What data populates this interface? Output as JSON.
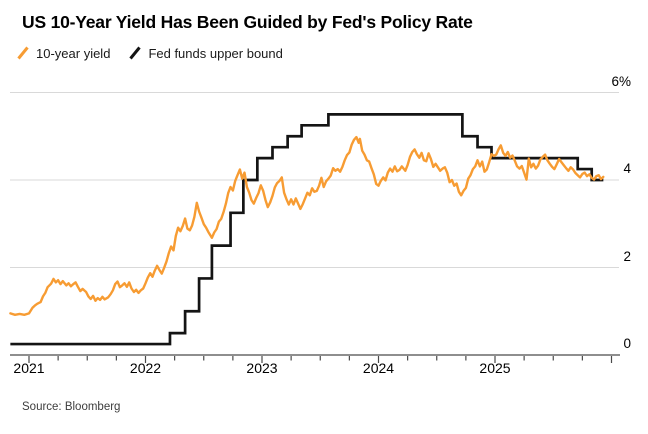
{
  "title": "US 10-Year Yield Has Been Guided by Fed's Policy Rate",
  "source": "Source: Bloomberg",
  "colors": {
    "yield_orange": "#F79C33",
    "fed_black": "#141414",
    "gridline": "#D9D9D9",
    "axis": "#4A4A4A"
  },
  "chart_data": {
    "type": "line",
    "title": "US 10-Year Yield Has Been Guided by Fed's Policy Rate",
    "xlabel": "",
    "ylabel": "",
    "x_unit": "decimal_year",
    "x_range": [
      2020.84,
      2026.0
    ],
    "ylim": [
      0,
      6
    ],
    "grid": "horizontal",
    "legend_position": "top-left",
    "y_ticks": [
      {
        "label": "6%",
        "v": 6
      },
      {
        "label": "4",
        "v": 4
      },
      {
        "label": "2",
        "v": 2
      },
      {
        "label": "0",
        "v": 0
      }
    ],
    "x_ticks": [
      {
        "label": "2021",
        "t": 2021
      },
      {
        "label": "2022",
        "t": 2022
      },
      {
        "label": "2023",
        "t": 2023
      },
      {
        "label": "2024",
        "t": 2024
      },
      {
        "label": "2025",
        "t": 2025
      }
    ],
    "x_minor_tick_step": 0.25,
    "series": [
      {
        "name": "10-year yield",
        "style": "line",
        "color": "#F79C33",
        "points": [
          [
            2020.84,
            0.95
          ],
          [
            2020.88,
            0.92
          ],
          [
            2020.92,
            0.94
          ],
          [
            2020.96,
            0.92
          ],
          [
            2021.0,
            0.95
          ],
          [
            2021.03,
            1.08
          ],
          [
            2021.05,
            1.13
          ],
          [
            2021.07,
            1.17
          ],
          [
            2021.1,
            1.21
          ],
          [
            2021.12,
            1.34
          ],
          [
            2021.14,
            1.42
          ],
          [
            2021.16,
            1.55
          ],
          [
            2021.19,
            1.63
          ],
          [
            2021.21,
            1.74
          ],
          [
            2021.23,
            1.66
          ],
          [
            2021.25,
            1.71
          ],
          [
            2021.27,
            1.62
          ],
          [
            2021.29,
            1.69
          ],
          [
            2021.32,
            1.59
          ],
          [
            2021.34,
            1.64
          ],
          [
            2021.36,
            1.57
          ],
          [
            2021.38,
            1.62
          ],
          [
            2021.4,
            1.66
          ],
          [
            2021.42,
            1.56
          ],
          [
            2021.44,
            1.46
          ],
          [
            2021.46,
            1.51
          ],
          [
            2021.49,
            1.44
          ],
          [
            2021.51,
            1.34
          ],
          [
            2021.53,
            1.28
          ],
          [
            2021.55,
            1.35
          ],
          [
            2021.57,
            1.24
          ],
          [
            2021.59,
            1.3
          ],
          [
            2021.61,
            1.26
          ],
          [
            2021.63,
            1.33
          ],
          [
            2021.65,
            1.27
          ],
          [
            2021.68,
            1.32
          ],
          [
            2021.7,
            1.39
          ],
          [
            2021.72,
            1.48
          ],
          [
            2021.74,
            1.62
          ],
          [
            2021.76,
            1.68
          ],
          [
            2021.78,
            1.55
          ],
          [
            2021.8,
            1.59
          ],
          [
            2021.82,
            1.64
          ],
          [
            2021.84,
            1.56
          ],
          [
            2021.86,
            1.66
          ],
          [
            2021.88,
            1.52
          ],
          [
            2021.9,
            1.44
          ],
          [
            2021.92,
            1.49
          ],
          [
            2021.94,
            1.42
          ],
          [
            2021.96,
            1.48
          ],
          [
            2021.98,
            1.52
          ],
          [
            2022.0,
            1.64
          ],
          [
            2022.02,
            1.77
          ],
          [
            2022.04,
            1.87
          ],
          [
            2022.06,
            1.79
          ],
          [
            2022.08,
            1.93
          ],
          [
            2022.1,
            2.04
          ],
          [
            2022.12,
            1.94
          ],
          [
            2022.14,
            1.86
          ],
          [
            2022.16,
            1.99
          ],
          [
            2022.18,
            2.14
          ],
          [
            2022.2,
            2.33
          ],
          [
            2022.22,
            2.48
          ],
          [
            2022.24,
            2.39
          ],
          [
            2022.26,
            2.72
          ],
          [
            2022.28,
            2.91
          ],
          [
            2022.3,
            2.83
          ],
          [
            2022.32,
            2.95
          ],
          [
            2022.34,
            3.12
          ],
          [
            2022.36,
            2.89
          ],
          [
            2022.38,
            2.85
          ],
          [
            2022.4,
            2.96
          ],
          [
            2022.42,
            3.16
          ],
          [
            2022.44,
            3.48
          ],
          [
            2022.46,
            3.28
          ],
          [
            2022.48,
            3.14
          ],
          [
            2022.5,
            2.99
          ],
          [
            2022.52,
            2.91
          ],
          [
            2022.54,
            2.81
          ],
          [
            2022.57,
            2.68
          ],
          [
            2022.59,
            2.8
          ],
          [
            2022.61,
            2.88
          ],
          [
            2022.63,
            3.05
          ],
          [
            2022.65,
            3.11
          ],
          [
            2022.67,
            3.27
          ],
          [
            2022.69,
            3.46
          ],
          [
            2022.71,
            3.7
          ],
          [
            2022.73,
            3.84
          ],
          [
            2022.75,
            3.76
          ],
          [
            2022.77,
            3.98
          ],
          [
            2022.79,
            4.11
          ],
          [
            2022.81,
            4.24
          ],
          [
            2022.83,
            4.03
          ],
          [
            2022.85,
            4.17
          ],
          [
            2022.87,
            3.84
          ],
          [
            2022.89,
            3.71
          ],
          [
            2022.91,
            3.54
          ],
          [
            2022.93,
            3.46
          ],
          [
            2022.95,
            3.59
          ],
          [
            2022.97,
            3.7
          ],
          [
            2022.99,
            3.88
          ],
          [
            2023.01,
            3.75
          ],
          [
            2023.03,
            3.54
          ],
          [
            2023.05,
            3.38
          ],
          [
            2023.07,
            3.49
          ],
          [
            2023.09,
            3.64
          ],
          [
            2023.11,
            3.83
          ],
          [
            2023.13,
            3.93
          ],
          [
            2023.15,
            3.98
          ],
          [
            2023.17,
            4.06
          ],
          [
            2023.19,
            3.71
          ],
          [
            2023.21,
            3.56
          ],
          [
            2023.23,
            3.44
          ],
          [
            2023.25,
            3.56
          ],
          [
            2023.27,
            3.44
          ],
          [
            2023.29,
            3.58
          ],
          [
            2023.31,
            3.46
          ],
          [
            2023.33,
            3.34
          ],
          [
            2023.35,
            3.45
          ],
          [
            2023.37,
            3.58
          ],
          [
            2023.39,
            3.71
          ],
          [
            2023.41,
            3.65
          ],
          [
            2023.43,
            3.81
          ],
          [
            2023.45,
            3.73
          ],
          [
            2023.47,
            3.75
          ],
          [
            2023.49,
            3.87
          ],
          [
            2023.51,
            4.05
          ],
          [
            2023.53,
            3.84
          ],
          [
            2023.55,
            3.97
          ],
          [
            2023.57,
            4.03
          ],
          [
            2023.59,
            4.1
          ],
          [
            2023.61,
            4.27
          ],
          [
            2023.63,
            4.21
          ],
          [
            2023.65,
            4.25
          ],
          [
            2023.67,
            4.19
          ],
          [
            2023.69,
            4.3
          ],
          [
            2023.71,
            4.45
          ],
          [
            2023.73,
            4.57
          ],
          [
            2023.75,
            4.63
          ],
          [
            2023.77,
            4.81
          ],
          [
            2023.79,
            4.92
          ],
          [
            2023.81,
            4.98
          ],
          [
            2023.83,
            4.85
          ],
          [
            2023.84,
            4.94
          ],
          [
            2023.86,
            4.67
          ],
          [
            2023.88,
            4.58
          ],
          [
            2023.9,
            4.45
          ],
          [
            2023.92,
            4.42
          ],
          [
            2023.94,
            4.27
          ],
          [
            2023.96,
            4.13
          ],
          [
            2023.98,
            3.91
          ],
          [
            2024.0,
            3.87
          ],
          [
            2024.02,
            3.98
          ],
          [
            2024.04,
            4.06
          ],
          [
            2024.06,
            3.99
          ],
          [
            2024.08,
            4.17
          ],
          [
            2024.1,
            4.26
          ],
          [
            2024.12,
            4.19
          ],
          [
            2024.14,
            4.31
          ],
          [
            2024.16,
            4.2
          ],
          [
            2024.18,
            4.23
          ],
          [
            2024.2,
            4.31
          ],
          [
            2024.23,
            4.21
          ],
          [
            2024.25,
            4.34
          ],
          [
            2024.27,
            4.53
          ],
          [
            2024.29,
            4.64
          ],
          [
            2024.31,
            4.7
          ],
          [
            2024.33,
            4.59
          ],
          [
            2024.35,
            4.51
          ],
          [
            2024.37,
            4.62
          ],
          [
            2024.39,
            4.45
          ],
          [
            2024.41,
            4.43
          ],
          [
            2024.43,
            4.61
          ],
          [
            2024.45,
            4.48
          ],
          [
            2024.47,
            4.3
          ],
          [
            2024.49,
            4.37
          ],
          [
            2024.51,
            4.29
          ],
          [
            2024.53,
            4.21
          ],
          [
            2024.55,
            4.26
          ],
          [
            2024.57,
            4.29
          ],
          [
            2024.59,
            4.17
          ],
          [
            2024.61,
            3.95
          ],
          [
            2024.63,
            4.0
          ],
          [
            2024.65,
            3.87
          ],
          [
            2024.67,
            3.92
          ],
          [
            2024.69,
            3.73
          ],
          [
            2024.71,
            3.65
          ],
          [
            2024.73,
            3.75
          ],
          [
            2024.75,
            3.82
          ],
          [
            2024.77,
            4.03
          ],
          [
            2024.79,
            4.11
          ],
          [
            2024.81,
            4.25
          ],
          [
            2024.83,
            4.31
          ],
          [
            2024.85,
            4.45
          ],
          [
            2024.87,
            4.31
          ],
          [
            2024.89,
            4.42
          ],
          [
            2024.91,
            4.19
          ],
          [
            2024.93,
            4.24
          ],
          [
            2024.95,
            4.41
          ],
          [
            2024.97,
            4.59
          ],
          [
            2024.99,
            4.55
          ],
          [
            2025.01,
            4.58
          ],
          [
            2025.03,
            4.7
          ],
          [
            2025.05,
            4.79
          ],
          [
            2025.07,
            4.62
          ],
          [
            2025.09,
            4.55
          ],
          [
            2025.11,
            4.64
          ],
          [
            2025.13,
            4.51
          ],
          [
            2025.15,
            4.56
          ],
          [
            2025.17,
            4.44
          ],
          [
            2025.19,
            4.31
          ],
          [
            2025.21,
            4.26
          ],
          [
            2025.23,
            4.32
          ],
          [
            2025.25,
            4.17
          ],
          [
            2025.27,
            4.01
          ],
          [
            2025.29,
            4.49
          ],
          [
            2025.31,
            4.29
          ],
          [
            2025.33,
            4.37
          ],
          [
            2025.35,
            4.26
          ],
          [
            2025.37,
            4.33
          ],
          [
            2025.39,
            4.47
          ],
          [
            2025.41,
            4.53
          ],
          [
            2025.43,
            4.58
          ],
          [
            2025.45,
            4.45
          ],
          [
            2025.47,
            4.37
          ],
          [
            2025.49,
            4.3
          ],
          [
            2025.51,
            4.25
          ],
          [
            2025.53,
            4.36
          ],
          [
            2025.55,
            4.48
          ],
          [
            2025.57,
            4.41
          ],
          [
            2025.59,
            4.34
          ],
          [
            2025.61,
            4.27
          ],
          [
            2025.63,
            4.21
          ],
          [
            2025.65,
            4.29
          ],
          [
            2025.67,
            4.24
          ],
          [
            2025.69,
            4.16
          ],
          [
            2025.71,
            4.11
          ],
          [
            2025.73,
            4.06
          ],
          [
            2025.75,
            4.14
          ],
          [
            2025.77,
            4.17
          ],
          [
            2025.79,
            4.09
          ],
          [
            2025.81,
            4.13
          ],
          [
            2025.83,
            4.05
          ],
          [
            2025.85,
            4.01
          ],
          [
            2025.87,
            4.09
          ],
          [
            2025.89,
            4.11
          ],
          [
            2025.91,
            4.02
          ],
          [
            2025.93,
            4.07
          ]
        ]
      },
      {
        "name": "Fed funds upper bound",
        "style": "step",
        "color": "#141414",
        "end_t": 2025.93,
        "points": [
          [
            2020.84,
            0.25
          ],
          [
            2022.21,
            0.5
          ],
          [
            2022.34,
            1.0
          ],
          [
            2022.46,
            1.75
          ],
          [
            2022.57,
            2.5
          ],
          [
            2022.73,
            3.25
          ],
          [
            2022.84,
            4.0
          ],
          [
            2022.96,
            4.5
          ],
          [
            2023.09,
            4.75
          ],
          [
            2023.22,
            5.0
          ],
          [
            2023.34,
            5.25
          ],
          [
            2023.57,
            5.5
          ],
          [
            2024.72,
            5.0
          ],
          [
            2024.85,
            4.75
          ],
          [
            2024.97,
            4.5
          ],
          [
            2025.71,
            4.25
          ],
          [
            2025.83,
            4.0
          ]
        ]
      }
    ]
  }
}
